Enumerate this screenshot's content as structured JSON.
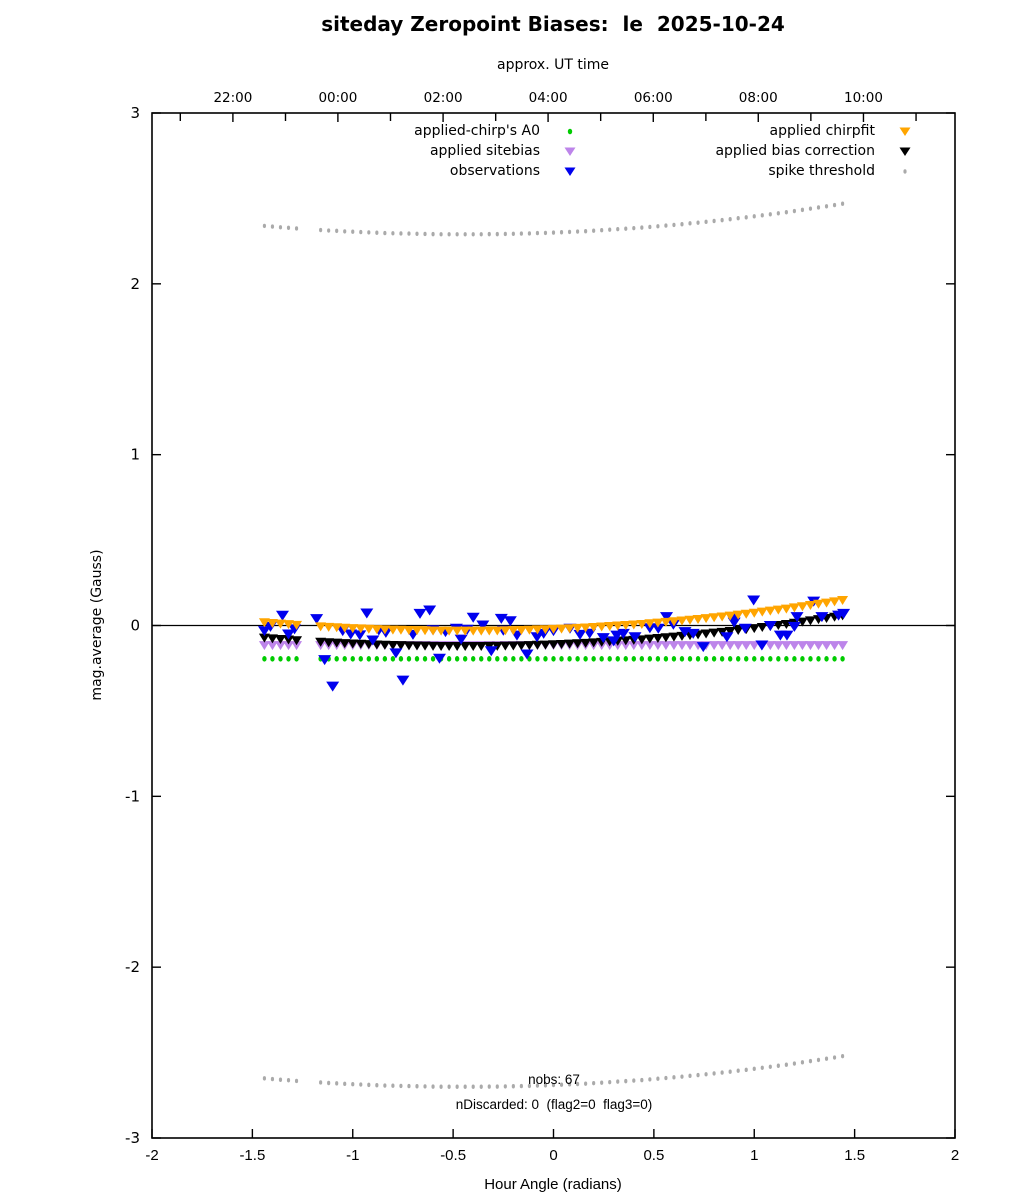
{
  "header": {
    "title": "siteday Zeropoint Biases:  le  2025-10-24",
    "top_axis_label": "approx. UT time"
  },
  "axes": {
    "x_label": "Hour Angle (radians)",
    "y_label": "mag.average (Gauss)"
  },
  "annotations": {
    "nobs": "nobs: 67",
    "ndiscarded": "nDiscarded: 0  (flag2=0  flag3=0)"
  },
  "colors": {
    "a0_green": "#00cc00",
    "sitebias_purple": "#bd85ea",
    "observations_blue": "#0000ee",
    "chirpfit_orange": "#ffa500",
    "bias_correction_black": "#000000",
    "spike_threshold_gray": "#aaaaaa",
    "axis": "#000000",
    "background": "#ffffff"
  },
  "legend": {
    "columns": [
      {
        "entries": [
          {
            "label": "applied-chirp's A0",
            "marker": "dot",
            "color": "#00cc00"
          },
          {
            "label": "applied sitebias",
            "marker": "triangle",
            "color": "#bd85ea"
          },
          {
            "label": "observations",
            "marker": "triangle",
            "color": "#0000ee"
          }
        ]
      },
      {
        "entries": [
          {
            "label": "applied chirpfit",
            "marker": "triangle",
            "color": "#ffa500"
          },
          {
            "label": "applied bias correction",
            "marker": "triangle",
            "color": "#000000"
          },
          {
            "label": "spike threshold",
            "marker": "smalldot",
            "color": "#aaaaaa"
          }
        ]
      }
    ]
  },
  "chart_data": {
    "type": "scatter",
    "title": "siteday Zeropoint Biases:  le  2025-10-24",
    "xlabel": "Hour Angle (radians)",
    "ylabel": "mag.average (Gauss)",
    "x2label": "approx. UT time",
    "xlim": [
      -2,
      2
    ],
    "ylim": [
      -3,
      3
    ],
    "grid": false,
    "legend_position": "top-inside-two-columns",
    "x_ticks": [
      {
        "v": -2,
        "label": "-2"
      },
      {
        "v": -1.5,
        "label": "-1.5"
      },
      {
        "v": -1,
        "label": "-1"
      },
      {
        "v": -0.5,
        "label": "-0.5"
      },
      {
        "v": 0,
        "label": "0"
      },
      {
        "v": 0.5,
        "label": "0.5"
      },
      {
        "v": 1,
        "label": "1"
      },
      {
        "v": 1.5,
        "label": "1.5"
      },
      {
        "v": 2,
        "label": "2"
      }
    ],
    "y_ticks": [
      {
        "v": -3,
        "label": "-3"
      },
      {
        "v": -2,
        "label": "-2"
      },
      {
        "v": -1,
        "label": "-1"
      },
      {
        "v": 0,
        "label": "0"
      },
      {
        "v": 1,
        "label": "1"
      },
      {
        "v": 2,
        "label": "2"
      },
      {
        "v": 3,
        "label": "3"
      }
    ],
    "ut_ticks": [
      {
        "label": "22:00",
        "x": -1.597
      },
      {
        "label": "00:00",
        "x": -1.074
      },
      {
        "label": "02:00",
        "x": -0.55
      },
      {
        "label": "04:00",
        "x": -0.027
      },
      {
        "label": "06:00",
        "x": 0.497
      },
      {
        "label": "08:00",
        "x": 1.02
      },
      {
        "label": "10:00",
        "x": 1.544
      }
    ],
    "ut_minor_ticks": [
      -1.859,
      -1.335,
      -0.812,
      -0.288,
      0.235,
      0.759,
      1.282,
      1.806
    ],
    "zero_line_y": 0,
    "grid_x": [
      -1.44,
      -1.4,
      -1.36,
      -1.32,
      -1.28,
      -1.16,
      -1.12,
      -1.08,
      -1.04,
      -1,
      -0.96,
      -0.92,
      -0.88,
      -0.84,
      -0.8,
      -0.76,
      -0.72,
      -0.68,
      -0.64,
      -0.6,
      -0.56,
      -0.52,
      -0.48,
      -0.44,
      -0.4,
      -0.36,
      -0.32,
      -0.28,
      -0.24,
      -0.2,
      -0.16,
      -0.12,
      -0.08,
      -0.04,
      0,
      0.04,
      0.08,
      0.12,
      0.16,
      0.2,
      0.24,
      0.28,
      0.32,
      0.36,
      0.4,
      0.44,
      0.48,
      0.52,
      0.56,
      0.6,
      0.64,
      0.68,
      0.72,
      0.76,
      0.8,
      0.84,
      0.88,
      0.92,
      0.96,
      1,
      1.04,
      1.08,
      1.12,
      1.16,
      1.2,
      1.24,
      1.28,
      1.32,
      1.36,
      1.4,
      1.44
    ],
    "series": [
      {
        "name": "spike threshold",
        "marker": "smalldot",
        "color": "#aaaaaa",
        "on_grid": true,
        "y_top": [
          2.339,
          2.335,
          2.331,
          2.328,
          2.324,
          2.315,
          2.312,
          2.31,
          2.307,
          2.305,
          2.303,
          2.301,
          2.299,
          2.297,
          2.296,
          2.295,
          2.294,
          2.293,
          2.292,
          2.291,
          2.29,
          2.29,
          2.29,
          2.29,
          2.29,
          2.29,
          2.291,
          2.291,
          2.292,
          2.293,
          2.294,
          2.295,
          2.297,
          2.298,
          2.3,
          2.302,
          2.304,
          2.306,
          2.308,
          2.311,
          2.314,
          2.317,
          2.32,
          2.323,
          2.326,
          2.329,
          2.333,
          2.337,
          2.341,
          2.345,
          2.349,
          2.354,
          2.358,
          2.363,
          2.368,
          2.373,
          2.378,
          2.384,
          2.389,
          2.395,
          2.401,
          2.407,
          2.413,
          2.419,
          2.426,
          2.433,
          2.44,
          2.447,
          2.454,
          2.461,
          2.469
        ],
        "y_bottom": [
          -2.651,
          -2.655,
          -2.659,
          -2.662,
          -2.666,
          -2.675,
          -2.678,
          -2.68,
          -2.683,
          -2.685,
          -2.687,
          -2.689,
          -2.691,
          -2.693,
          -2.694,
          -2.695,
          -2.696,
          -2.697,
          -2.698,
          -2.699,
          -2.7,
          -2.7,
          -2.7,
          -2.7,
          -2.7,
          -2.7,
          -2.699,
          -2.699,
          -2.698,
          -2.697,
          -2.696,
          -2.695,
          -2.693,
          -2.692,
          -2.69,
          -2.688,
          -2.686,
          -2.684,
          -2.682,
          -2.679,
          -2.676,
          -2.673,
          -2.67,
          -2.667,
          -2.664,
          -2.661,
          -2.657,
          -2.653,
          -2.649,
          -2.645,
          -2.641,
          -2.636,
          -2.632,
          -2.627,
          -2.622,
          -2.617,
          -2.612,
          -2.606,
          -2.601,
          -2.595,
          -2.589,
          -2.583,
          -2.577,
          -2.571,
          -2.564,
          -2.557,
          -2.55,
          -2.543,
          -2.536,
          -2.529,
          -2.521
        ]
      },
      {
        "name": "applied-chirp's A0",
        "marker": "dot",
        "color": "#00cc00",
        "on_grid": true,
        "y_all": -0.195
      },
      {
        "name": "applied sitebias",
        "marker": "triangle",
        "color": "#bd85ea",
        "on_grid": true,
        "y_all": -0.115
      },
      {
        "name": "applied bias correction",
        "marker": "triangle",
        "color": "#000000",
        "on_grid": true,
        "y": [
          -0.071,
          -0.075,
          -0.079,
          -0.082,
          -0.086,
          -0.095,
          -0.098,
          -0.1,
          -0.103,
          -0.105,
          -0.107,
          -0.109,
          -0.111,
          -0.113,
          -0.114,
          -0.115,
          -0.116,
          -0.117,
          -0.118,
          -0.119,
          -0.12,
          -0.12,
          -0.12,
          -0.12,
          -0.12,
          -0.12,
          -0.119,
          -0.119,
          -0.118,
          -0.117,
          -0.116,
          -0.115,
          -0.113,
          -0.112,
          -0.11,
          -0.108,
          -0.106,
          -0.104,
          -0.102,
          -0.099,
          -0.096,
          -0.093,
          -0.09,
          -0.087,
          -0.084,
          -0.081,
          -0.077,
          -0.073,
          -0.069,
          -0.065,
          -0.061,
          -0.056,
          -0.052,
          -0.047,
          -0.042,
          -0.037,
          -0.032,
          -0.026,
          -0.021,
          -0.015,
          -0.009,
          -0.003,
          0.003,
          0.009,
          0.016,
          0.023,
          0.03,
          0.037,
          0.044,
          0.051,
          0.059
        ]
      },
      {
        "name": "observations",
        "marker": "triangle-large",
        "color": "#0000ee",
        "on_grid": false,
        "points": [
          [
            -1.44,
            -0.03
          ],
          [
            -1.41,
            -0.005
          ],
          [
            -1.35,
            0.06
          ],
          [
            -1.32,
            -0.05
          ],
          [
            -1.29,
            -0.02
          ],
          [
            -1.18,
            0.04
          ],
          [
            -1.14,
            -0.2
          ],
          [
            -1.1,
            -0.355
          ],
          [
            -1.05,
            -0.03
          ],
          [
            -1.01,
            -0.05
          ],
          [
            -0.965,
            -0.055
          ],
          [
            -0.93,
            0.073
          ],
          [
            -0.9,
            -0.085
          ],
          [
            -0.87,
            -0.026
          ],
          [
            -0.835,
            -0.04
          ],
          [
            -0.785,
            -0.16
          ],
          [
            -0.75,
            -0.32
          ],
          [
            -0.7,
            -0.052
          ],
          [
            -0.665,
            0.071
          ],
          [
            -0.617,
            0.091
          ],
          [
            -0.6,
            -0.025
          ],
          [
            -0.568,
            -0.192
          ],
          [
            -0.538,
            -0.036
          ],
          [
            -0.484,
            -0.016
          ],
          [
            -0.46,
            -0.08
          ],
          [
            -0.43,
            -0.022
          ],
          [
            -0.4,
            0.048
          ],
          [
            -0.352,
            0.003
          ],
          [
            -0.31,
            -0.148
          ],
          [
            -0.26,
            0.042
          ],
          [
            -0.25,
            -0.028
          ],
          [
            -0.215,
            0.028
          ],
          [
            -0.182,
            -0.056
          ],
          [
            -0.132,
            -0.167
          ],
          [
            -0.082,
            -0.066
          ],
          [
            -0.049,
            -0.046
          ],
          [
            0,
            -0.03
          ],
          [
            0.082,
            -0.016
          ],
          [
            0.132,
            -0.052
          ],
          [
            0.18,
            -0.045
          ],
          [
            0.248,
            -0.071
          ],
          [
            0.3,
            -0.09
          ],
          [
            0.315,
            -0.056
          ],
          [
            0.348,
            -0.046
          ],
          [
            0.406,
            -0.066
          ],
          [
            0.48,
            -0.013
          ],
          [
            0.522,
            -0.016
          ],
          [
            0.563,
            0.052
          ],
          [
            0.597,
            0.007
          ],
          [
            0.655,
            -0.036
          ],
          [
            0.696,
            -0.046
          ],
          [
            0.746,
            -0.124
          ],
          [
            0.864,
            -0.066
          ],
          [
            0.9,
            0.02
          ],
          [
            0.905,
            0.044
          ],
          [
            0.955,
            -0.016
          ],
          [
            0.997,
            0.149
          ],
          [
            1.038,
            -0.114
          ],
          [
            1.08,
            0
          ],
          [
            1.13,
            -0.056
          ],
          [
            1.163,
            -0.056
          ],
          [
            1.2,
            -0.005
          ],
          [
            1.213,
            0.052
          ],
          [
            1.296,
            0.143
          ],
          [
            1.337,
            0.052
          ],
          [
            1.42,
            0.061
          ],
          [
            1.445,
            0.071
          ]
        ]
      },
      {
        "name": "applied chirpfit",
        "marker": "triangle",
        "color": "#ffa500",
        "on_grid": true,
        "y": [
          0.019,
          0.015,
          0.011,
          0.008,
          0.004,
          -0.005,
          -0.008,
          -0.01,
          -0.013,
          -0.015,
          -0.017,
          -0.019,
          -0.021,
          -0.023,
          -0.024,
          -0.025,
          -0.026,
          -0.027,
          -0.028,
          -0.029,
          -0.03,
          -0.03,
          -0.03,
          -0.03,
          -0.03,
          -0.03,
          -0.029,
          -0.029,
          -0.028,
          -0.027,
          -0.026,
          -0.025,
          -0.023,
          -0.022,
          -0.02,
          -0.018,
          -0.016,
          -0.014,
          -0.012,
          -0.009,
          -0.006,
          -0.003,
          0,
          0.003,
          0.006,
          0.009,
          0.013,
          0.017,
          0.021,
          0.025,
          0.029,
          0.034,
          0.038,
          0.043,
          0.048,
          0.053,
          0.058,
          0.064,
          0.069,
          0.075,
          0.081,
          0.087,
          0.093,
          0.099,
          0.106,
          0.113,
          0.12,
          0.127,
          0.134,
          0.141,
          0.149
        ]
      }
    ],
    "nobs": 67,
    "ndiscarded": 0
  }
}
